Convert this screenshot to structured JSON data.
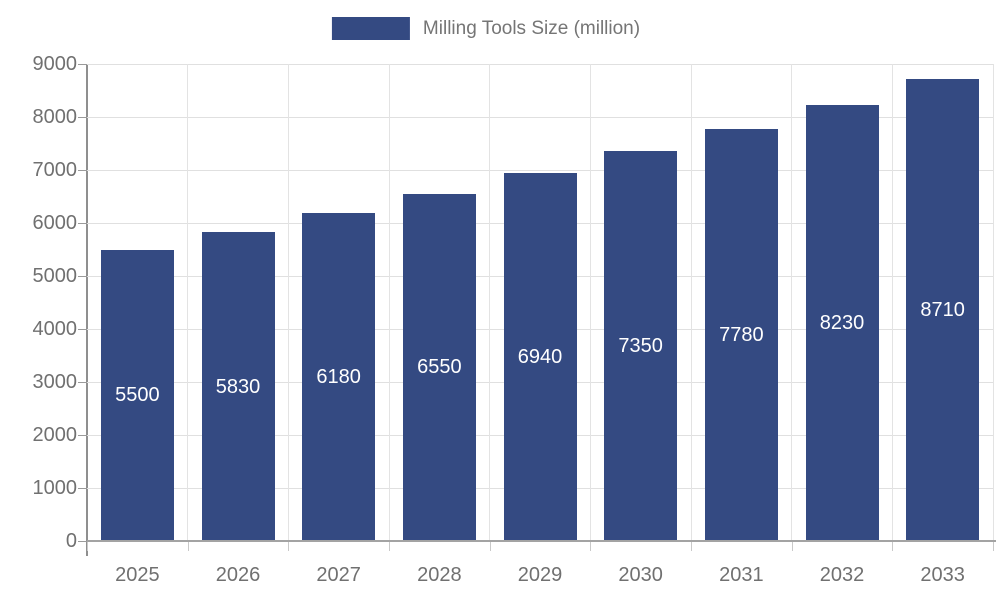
{
  "legend": {
    "label": "Milling Tools Size (million)"
  },
  "colors": {
    "bar": "#344a82",
    "bar_label": "#ffffff",
    "legend_text": "#757575",
    "axis_text": "#707070",
    "gridline": "#e0e0e0"
  },
  "chart_data": {
    "type": "bar",
    "title": "Milling Tools Size (million)",
    "series_name": "Milling Tools Size (million)",
    "categories": [
      "2025",
      "2026",
      "2027",
      "2028",
      "2029",
      "2030",
      "2031",
      "2032",
      "2033"
    ],
    "values": [
      5500,
      5830,
      6180,
      6550,
      6940,
      7350,
      7780,
      8230,
      8710
    ],
    "xlabel": "",
    "ylabel": "",
    "ylim": [
      0,
      9000
    ],
    "ytick_step": 1000,
    "ytick_labels": [
      "0",
      "1000",
      "2000",
      "3000",
      "4000",
      "5000",
      "6000",
      "7000",
      "8000",
      "9000"
    ],
    "grid": true,
    "legend_position": "top",
    "bar_value_labels_inside": true
  }
}
